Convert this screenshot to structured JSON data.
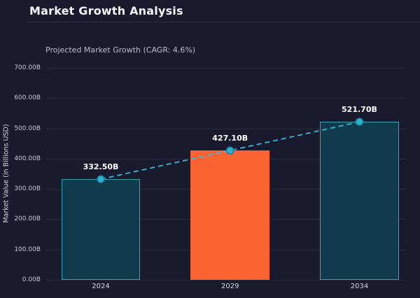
{
  "header": {
    "title": "Market Growth Analysis"
  },
  "chart_data": {
    "type": "bar",
    "title": "Projected Market Growth (CAGR: 4.6%)",
    "xlabel": "",
    "ylabel": "Market Value (in Billions USD)",
    "categories": [
      "2024",
      "2029",
      "2034"
    ],
    "values": [
      332.5,
      427.1,
      521.7
    ],
    "data_labels": [
      "332.50B",
      "427.10B",
      "521.70B"
    ],
    "bar_colors": [
      "#0f3b4c",
      "#f96332",
      "#0f3b4c"
    ],
    "bar_border_colors": [
      "#39a0ae",
      "#f96332",
      "#39a0ae"
    ],
    "ylim": [
      0,
      700
    ],
    "ytick_step": 100,
    "ytick_labels": [
      "0.00B",
      "100.00B",
      "200.00B",
      "300.00B",
      "400.00B",
      "500.00B",
      "600.00B",
      "700.00B"
    ],
    "grid": true,
    "legend": "none",
    "cagr_percent": 4.6,
    "line_overlay": {
      "type": "line",
      "style": "dashed",
      "color": "#38bada",
      "marker": "circle",
      "marker_color": "#2fb0d2",
      "marker_edge_color": "#17809c",
      "values": [
        332.5,
        427.1,
        521.7
      ]
    },
    "colors": {
      "background": "#1a1a2e",
      "grid": "rgba(255,255,255,0.08)",
      "title_text": "#f5f6f8",
      "muted_text": "#b9bdc9"
    }
  }
}
